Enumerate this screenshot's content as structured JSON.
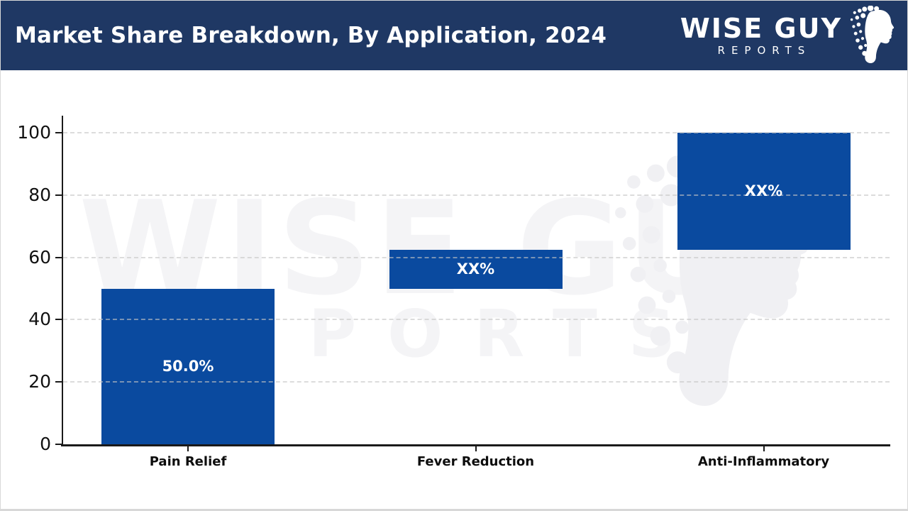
{
  "header": {
    "title": "Market Share Breakdown, By Application, 2024",
    "logo": {
      "wordmark": "WISE GUY",
      "subtitle": "REPORTS"
    }
  },
  "watermark": {
    "line1": "WISE GUY",
    "line2": "REPORTS"
  },
  "chart_data": {
    "type": "bar",
    "subtype": "floating-waterfall",
    "title": "Market Share Breakdown, By Application, 2024",
    "categories": [
      "Pain Relief",
      "Fever Reduction",
      "Anti-Inflammatory"
    ],
    "series": [
      {
        "name": "Market Share",
        "segments": [
          {
            "category": "Pain Relief",
            "start": 0,
            "end": 50,
            "label": "50.0%"
          },
          {
            "category": "Fever Reduction",
            "start": 50,
            "end": 62.5,
            "label": "XX%"
          },
          {
            "category": "Anti-Inflammatory",
            "start": 62.5,
            "end": 100,
            "label": "XX%"
          }
        ]
      }
    ],
    "xlabel": "",
    "ylabel": "",
    "yticks": [
      0,
      20,
      40,
      60,
      80,
      100
    ],
    "ylim": [
      0,
      105
    ],
    "grid": {
      "horizontal": true,
      "style": "dashed"
    },
    "legend": "none"
  },
  "colors": {
    "header_bg": "#1f3864",
    "header_text": "#ffffff",
    "bar": "#0a4a9f",
    "bar_label": "#ffffff",
    "grid": "#c5c5c5",
    "axis": "#1a1a1a",
    "tick_label": "#111111",
    "watermark": "#f4f4f6",
    "page_border": "#d8d8d8"
  }
}
